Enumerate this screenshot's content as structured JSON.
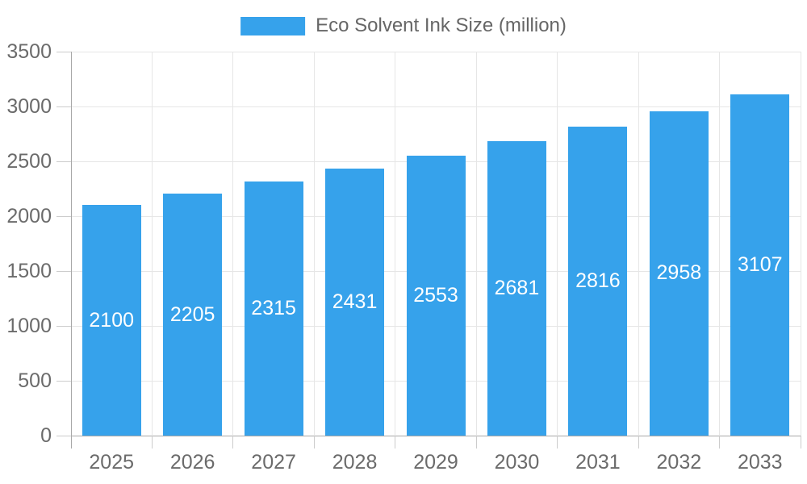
{
  "chart_data": {
    "type": "bar",
    "title": "",
    "legend_label": "Eco Solvent Ink Size (million)",
    "legend_position": "top",
    "categories": [
      "2025",
      "2026",
      "2027",
      "2028",
      "2029",
      "2030",
      "2031",
      "2032",
      "2033"
    ],
    "series": [
      {
        "name": "Eco Solvent Ink Size (million)",
        "values": [
          2100,
          2205,
          2315,
          2431,
          2553,
          2681,
          2816,
          2958,
          3107
        ]
      }
    ],
    "value_labels": [
      "2100",
      "2205",
      "2315",
      "2431",
      "2553",
      "2681",
      "2816",
      "2958",
      "3107"
    ],
    "xlabel": "",
    "ylabel": "",
    "ylim": [
      0,
      3500
    ],
    "y_tick_step": 500,
    "y_tick_labels": [
      "0",
      "500",
      "1000",
      "1500",
      "2000",
      "2500",
      "3000",
      "3500"
    ],
    "grid": true,
    "colors": {
      "bar": "#36A2EB",
      "value_label": "#ffffff",
      "grid_line": "#e6e6e6",
      "axis_line": "#a8a8a8",
      "tick_mark": "#cccccc",
      "tick_label": "#6b6b6b",
      "legend_text": "#666666",
      "background": "#ffffff"
    }
  }
}
